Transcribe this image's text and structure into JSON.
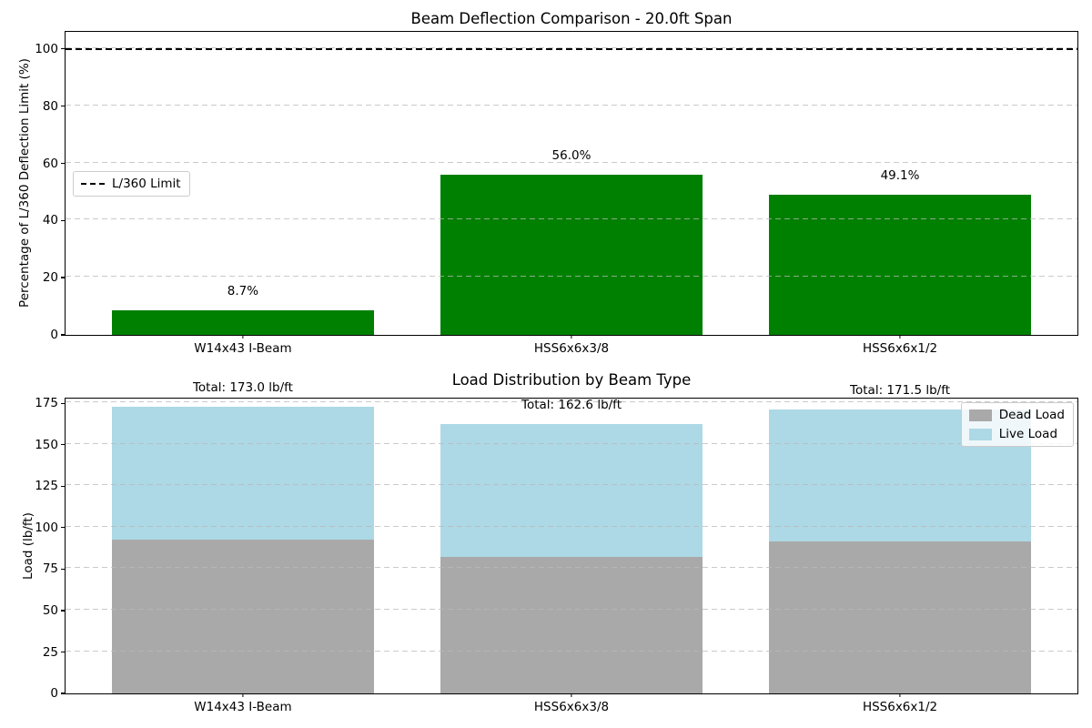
{
  "figure": {
    "background": "#ffffff"
  },
  "chart_data": [
    {
      "type": "bar",
      "title": "Beam Deflection Comparison - 20.0ft Span",
      "ylabel": "Percentage of L/360 Deflection Limit (%)",
      "categories": [
        "W14x43 I-Beam",
        "HSS6x6x3/8",
        "HSS6x6x1/2"
      ],
      "values": [
        8.7,
        56.0,
        49.1
      ],
      "annotations": [
        "8.7%",
        "56.0%",
        "49.1%"
      ],
      "bar_color": "#008000",
      "yticks": [
        0,
        20,
        40,
        60,
        80,
        100
      ],
      "ylim": [
        0,
        106
      ],
      "grid": "dashed-horizontal",
      "ref_line": {
        "value": 100,
        "color": "#000000",
        "style": "dashed"
      },
      "legend": {
        "position": "center-left",
        "items": [
          {
            "label": "L/360 Limit",
            "swatch": "dashed-line",
            "color": "#000000"
          }
        ]
      }
    },
    {
      "type": "stacked-bar",
      "title": "Load Distribution by Beam Type",
      "ylabel": "Load (lb/ft)",
      "categories": [
        "W14x43 I-Beam",
        "HSS6x6x3/8",
        "HSS6x6x1/2"
      ],
      "series": [
        {
          "name": "Dead Load",
          "color": "#a9a9a9",
          "values": [
            93.0,
            82.6,
            91.5
          ]
        },
        {
          "name": "Live Load",
          "color": "#add8e6",
          "values": [
            80.0,
            80.0,
            80.0
          ]
        }
      ],
      "totals": [
        173.0,
        162.6,
        171.5
      ],
      "annotations": [
        "Total: 173.0 lb/ft",
        "Total: 162.6 lb/ft",
        "Total: 171.5 lb/ft"
      ],
      "yticks": [
        0,
        25,
        50,
        75,
        100,
        125,
        150,
        175
      ],
      "ylim": [
        0,
        178
      ],
      "grid": "dashed-horizontal",
      "legend": {
        "position": "top-right",
        "items": [
          {
            "label": "Dead Load",
            "swatch": "patch",
            "color": "#a9a9a9"
          },
          {
            "label": "Live Load",
            "swatch": "patch",
            "color": "#add8e6"
          }
        ]
      }
    }
  ]
}
